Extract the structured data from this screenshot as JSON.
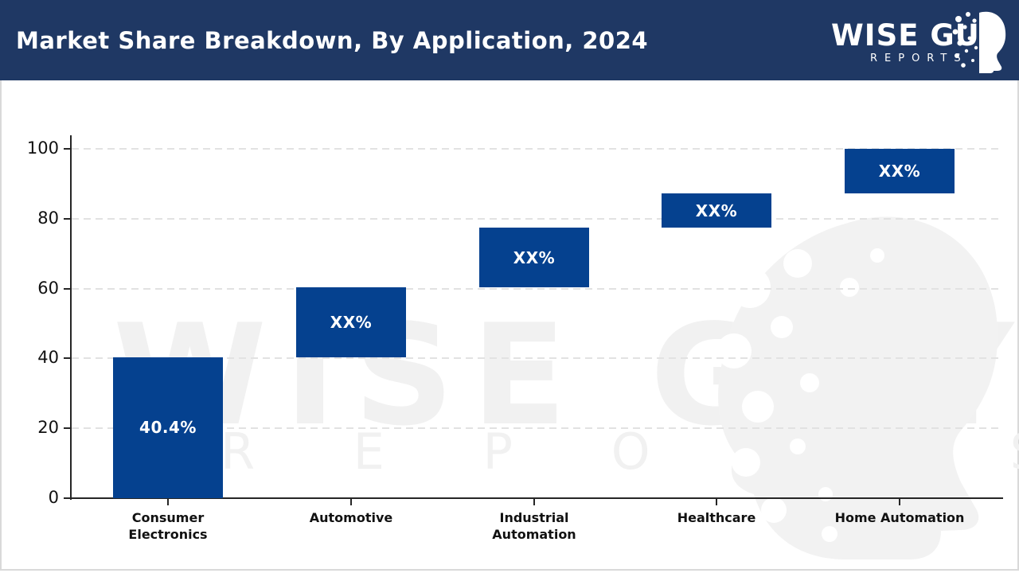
{
  "header": {
    "title": "Market Share Breakdown, By Application, 2024",
    "background_color": "#1f3864",
    "logo": {
      "line1": "WISE GUY",
      "line2": "REPORTS"
    }
  },
  "watermark": {
    "line1": "WISE GUY",
    "line2": "REPORTS"
  },
  "chart_data": {
    "type": "bar",
    "subtype": "waterfall",
    "title": "Market Share Breakdown, By Application, 2024",
    "xlabel": "",
    "ylabel": "",
    "categories": [
      "Consumer Electronics",
      "Automotive",
      "Industrial Automation",
      "Healthcare",
      "Home Automation"
    ],
    "category_lines": [
      [
        "Consumer",
        "Electronics"
      ],
      [
        "Automotive"
      ],
      [
        "Industrial",
        "Automation"
      ],
      [
        "Healthcare"
      ],
      [
        "Home Automation"
      ]
    ],
    "values": [
      40.4,
      20.0,
      17.0,
      9.8,
      12.8
    ],
    "cumulative": [
      [
        0,
        40.4
      ],
      [
        40.4,
        60.4
      ],
      [
        60.4,
        77.4
      ],
      [
        77.4,
        87.2
      ],
      [
        87.2,
        100
      ]
    ],
    "bar_labels": [
      "40.4%",
      "XX%",
      "XX%",
      "XX%",
      "XX%"
    ],
    "y_ticks": [
      0,
      20,
      40,
      60,
      80,
      100
    ],
    "ylim": [
      0,
      104
    ],
    "grid": "horizontal-dashed",
    "legend": "none",
    "colors": {
      "bar": "#05418f",
      "bar_label": "#ffffff",
      "grid": "#e2e2e2",
      "axis": "#262626",
      "tick_label": "#111111",
      "frame_border": "#d9d9d9",
      "watermark": "#f1f1f1"
    }
  }
}
